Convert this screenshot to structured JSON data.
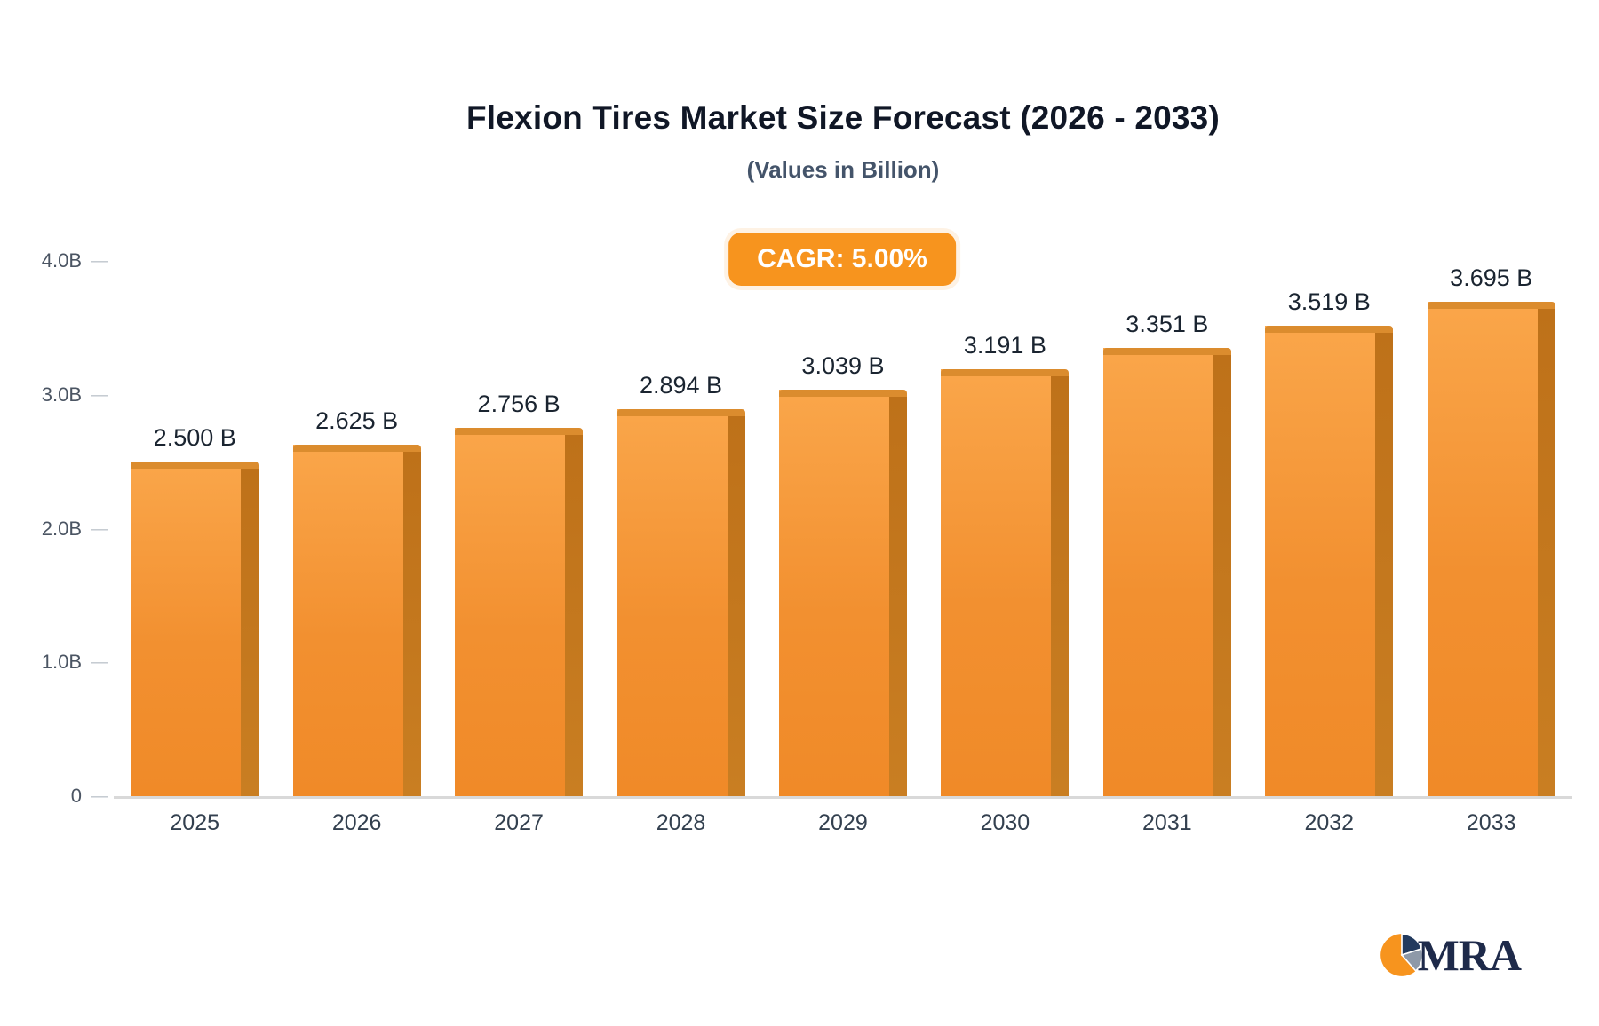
{
  "page": {
    "title": "Flexion Tires Market Size Forecast (2026 - 2033)",
    "subtitle": "(Values in Billion)",
    "cagr_label": "CAGR: 5.00%",
    "logo_text": "MRA"
  },
  "chart_data": {
    "type": "bar",
    "title": "Flexion Tires Market Size Forecast (2026 - 2033)",
    "subtitle": "(Values in Billion)",
    "cagr": "5.00%",
    "categories": [
      "2025",
      "2026",
      "2027",
      "2028",
      "2029",
      "2030",
      "2031",
      "2032",
      "2033"
    ],
    "values": [
      2.5,
      2.625,
      2.756,
      2.894,
      3.039,
      3.191,
      3.351,
      3.519,
      3.695
    ],
    "value_labels": [
      "2.500 B",
      "2.625 B",
      "2.756 B",
      "2.894 B",
      "3.039 B",
      "3.191 B",
      "3.351 B",
      "3.519 B",
      "3.695 B"
    ],
    "xlabel": "",
    "ylabel": "",
    "ylim": [
      0,
      4.0
    ],
    "yticks": [
      {
        "value": 4.0,
        "label": "4.0B"
      },
      {
        "value": 3.0,
        "label": "3.0B"
      },
      {
        "value": 2.0,
        "label": "2.0B"
      },
      {
        "value": 1.0,
        "label": "1.0B"
      },
      {
        "value": 0,
        "label": "0"
      }
    ],
    "grid": false,
    "legend": false,
    "bar_color": "#F7941E",
    "bar_side_color": "#C1741C"
  },
  "colors": {
    "accent_orange": "#F7941E",
    "title_text": "#101726",
    "subtitle_text": "#44546A",
    "axis_text": "#4B5563",
    "logo_navy": "#1E2A4A"
  }
}
